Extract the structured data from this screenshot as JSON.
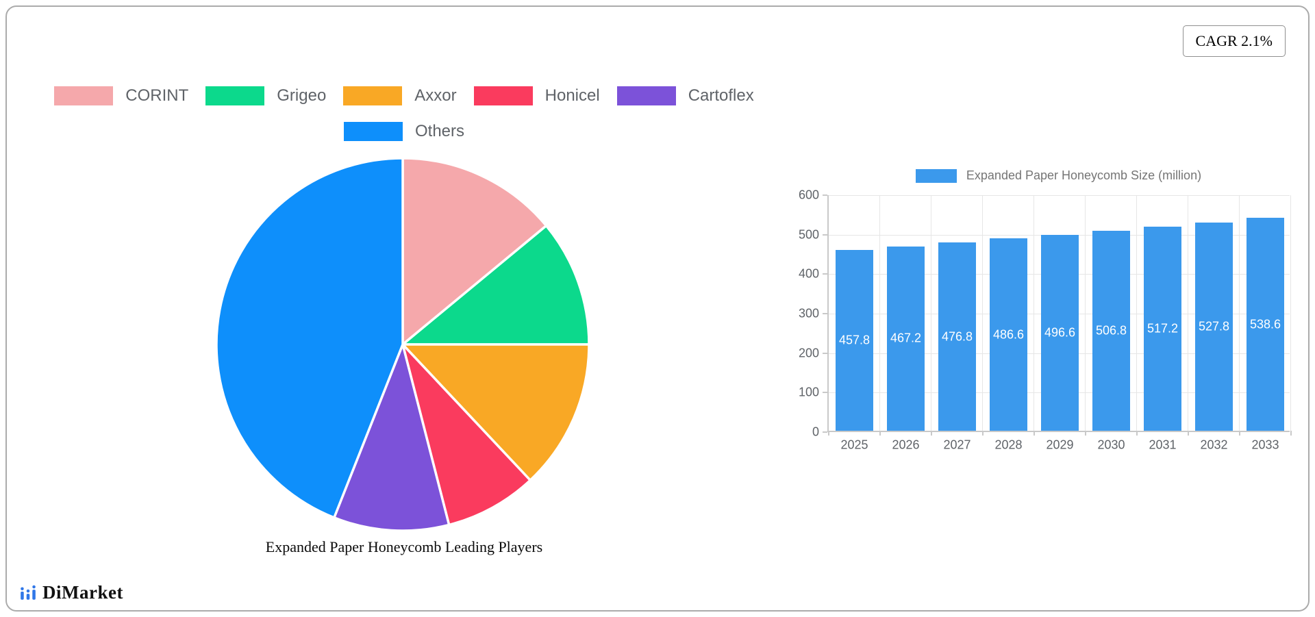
{
  "badge": {
    "label": "CAGR 2.1%"
  },
  "footer": {
    "brand": "DiMarket",
    "logo_icon": "bar-chart-logo-icon",
    "logo_color": "#3077e8"
  },
  "chart_data": [
    {
      "type": "pie",
      "title": "Expanded Paper Honeycomb Leading Players",
      "start_angle_deg": 0,
      "direction": "clockwise",
      "slice_border_color": "#ffffff",
      "legend_position": "top",
      "legend_rows": [
        [
          "CORINT",
          "Grigeo",
          "Axxor",
          "Honicel",
          "Cartoflex"
        ],
        [
          "Others"
        ]
      ],
      "slices": [
        {
          "label": "CORINT",
          "value_pct": 14,
          "color": "#f5a8ab"
        },
        {
          "label": "Grigeo",
          "value_pct": 11,
          "color": "#0cd98c"
        },
        {
          "label": "Axxor",
          "value_pct": 13,
          "color": "#f9a825"
        },
        {
          "label": "Honicel",
          "value_pct": 8,
          "color": "#fa3b5e"
        },
        {
          "label": "Cartoflex",
          "value_pct": 10,
          "color": "#7c52d9"
        },
        {
          "label": "Others",
          "value_pct": 44,
          "color": "#0e8ffb"
        }
      ]
    },
    {
      "type": "bar",
      "legend_label": "Expanded Paper Honeycomb Size (million)",
      "legend_position": "top",
      "categories": [
        "2025",
        "2026",
        "2027",
        "2028",
        "2029",
        "2030",
        "2031",
        "2032",
        "2033"
      ],
      "values": [
        457.8,
        467.2,
        476.8,
        486.6,
        496.6,
        506.8,
        517.2,
        527.8,
        538.6
      ],
      "bar_color": "#3b99ec",
      "value_label_color": "#ffffff",
      "value_labels": "inside-center",
      "ylim": [
        0,
        600
      ],
      "yticks": [
        0,
        100,
        200,
        300,
        400,
        500,
        600
      ],
      "grid": true
    }
  ]
}
